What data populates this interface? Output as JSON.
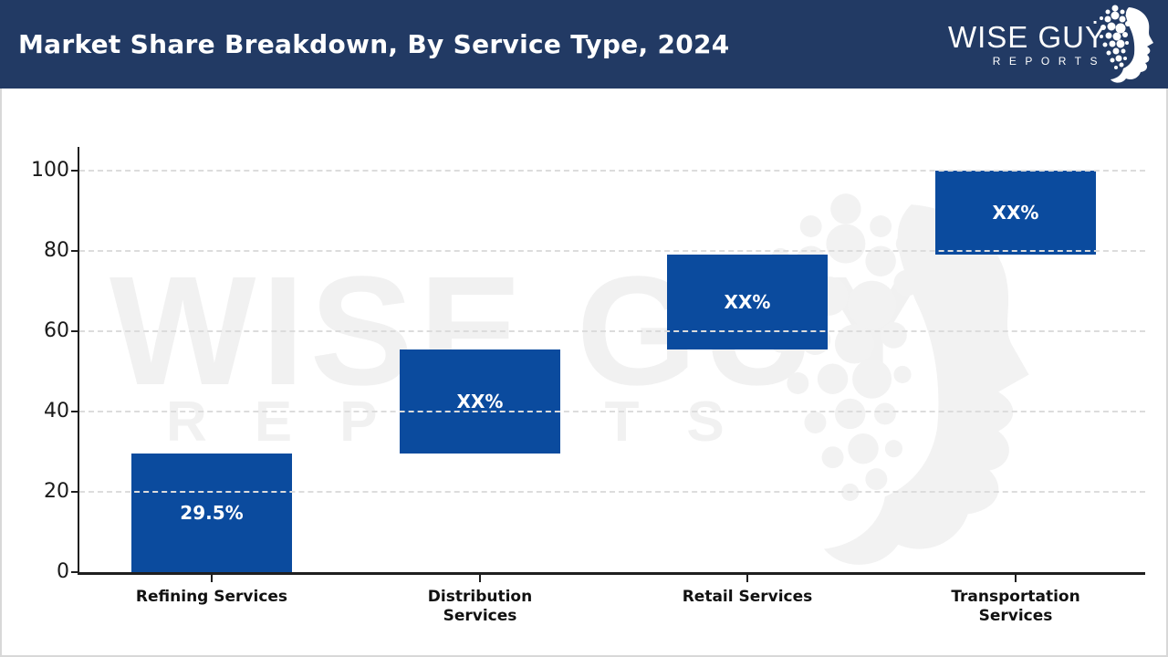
{
  "header": {
    "title": "Market Share Breakdown, By Service Type, 2024",
    "bg_color": "#223a64",
    "logo": {
      "line1": "WISE GUẎ",
      "line2": "REPORTS"
    }
  },
  "watermark": {
    "line1": "WISE GUY",
    "line2": "REPORTS"
  },
  "chart_data": {
    "type": "bar",
    "subtype": "waterfall",
    "title": "Market Share Breakdown, By Service Type, 2024",
    "categories": [
      "Refining Services",
      "Distribution\nServices",
      "Retail Services",
      "Transportation\nServices"
    ],
    "segments": [
      {
        "category": "Refining Services",
        "start": 0,
        "end": 29.5,
        "label": "29.5%"
      },
      {
        "category": "Distribution Services",
        "start": 29.5,
        "end": 55.5,
        "label": "XX%"
      },
      {
        "category": "Retail Services",
        "start": 55.5,
        "end": 79,
        "label": "XX%"
      },
      {
        "category": "Transportation Services",
        "start": 79,
        "end": 100,
        "label": "XX%"
      }
    ],
    "yticks": [
      0,
      20,
      40,
      60,
      80,
      100
    ],
    "ylim": [
      0,
      100
    ],
    "xlabel": "",
    "ylabel": "",
    "grid": true,
    "gridline_style": "dashed",
    "legend": "none",
    "bar_color": "#0b4b9e",
    "bar_label_color": "#ffffff"
  }
}
